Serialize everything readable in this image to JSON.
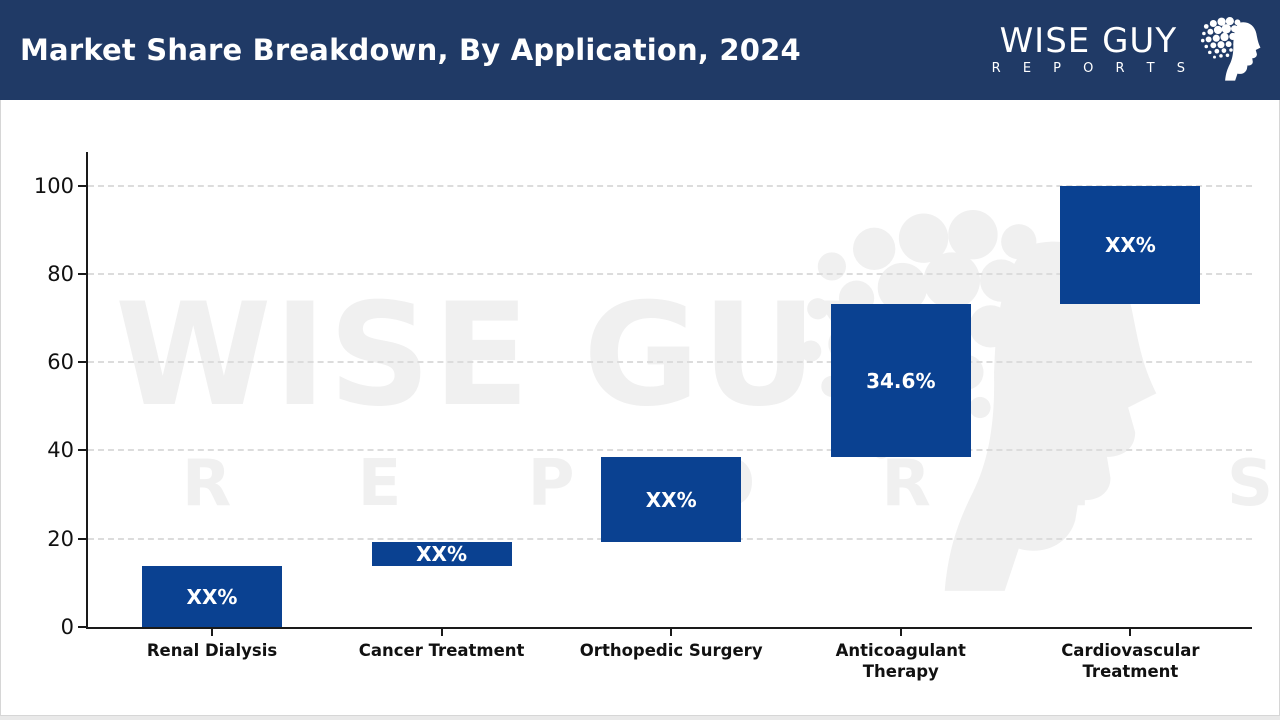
{
  "header": {
    "title": "Market Share Breakdown, By Application, 2024",
    "logo": {
      "brand_line1": "WISE GUY",
      "brand_line2": "R E P O R T S"
    }
  },
  "watermark": {
    "line1": "WISE GUY",
    "line2": "R E P O R T S"
  },
  "colors": {
    "header_bg": "#203a66",
    "bar": "#0a4191",
    "bar_label": "#ffffff",
    "grid": "#dcdcdc",
    "axis": "#1a1a1a",
    "watermark": "#f0f0f0"
  },
  "chart_data": {
    "type": "bar",
    "variant": "floating-waterfall",
    "title": "Market Share Breakdown, By Application, 2024",
    "xlabel": "",
    "ylabel": "",
    "categories": [
      "Renal Dialysis",
      "Cancer Treatment",
      "Orthopedic Surgery",
      "Anticoagulant Therapy",
      "Cardiovascular Treatment"
    ],
    "segments": [
      {
        "category": "Renal Dialysis",
        "start": 0,
        "end": 13.8,
        "label": "XX%"
      },
      {
        "category": "Cancer Treatment",
        "start": 13.8,
        "end": 19.2,
        "label": "XX%"
      },
      {
        "category": "Orthopedic Surgery",
        "start": 19.2,
        "end": 38.5,
        "label": "XX%"
      },
      {
        "category": "Anticoagulant Therapy",
        "start": 38.5,
        "end": 73.1,
        "label": "34.6%"
      },
      {
        "category": "Cardiovascular Treatment",
        "start": 73.1,
        "end": 100,
        "label": "XX%"
      }
    ],
    "y_ticks": [
      0,
      20,
      40,
      60,
      80,
      100
    ],
    "ylim": [
      0,
      107
    ],
    "grid": "horizontal-dashed",
    "legend": "none"
  }
}
